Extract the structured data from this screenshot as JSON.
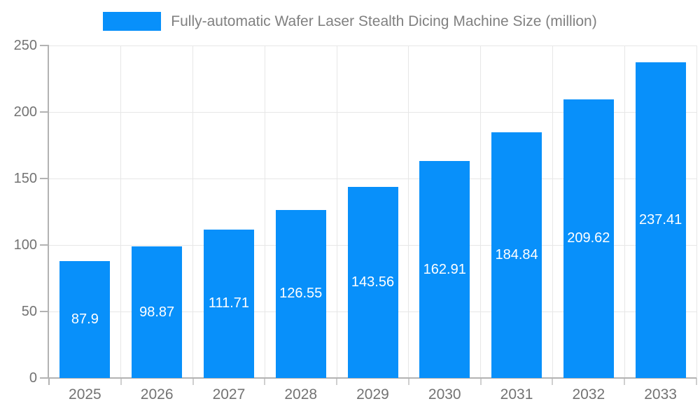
{
  "legend": {
    "label": "Fully-automatic Wafer Laser Stealth Dicing Machine Size (million)"
  },
  "chart_data": {
    "type": "bar",
    "title": "",
    "series_name": "Fully-automatic Wafer Laser Stealth Dicing Machine Size (million)",
    "categories": [
      "2025",
      "2026",
      "2027",
      "2028",
      "2029",
      "2030",
      "2031",
      "2032",
      "2033"
    ],
    "values": [
      87.9,
      98.87,
      111.71,
      126.55,
      143.56,
      162.91,
      184.84,
      209.62,
      237.41
    ],
    "xlabel": "",
    "ylabel": "",
    "ylim": [
      0,
      250
    ],
    "yticks": [
      0,
      50,
      100,
      150,
      200,
      250
    ],
    "grid": true,
    "legend_position": "top",
    "bar_color": "#0890FA",
    "value_label_color": "#FFFFFF",
    "axis_text_color": "#737373",
    "legend_text_color": "#808080",
    "gridline_color": "#E7E7E7",
    "axis_line_color": "#B3B3B3",
    "xtick_color": "#CFCFCF"
  }
}
